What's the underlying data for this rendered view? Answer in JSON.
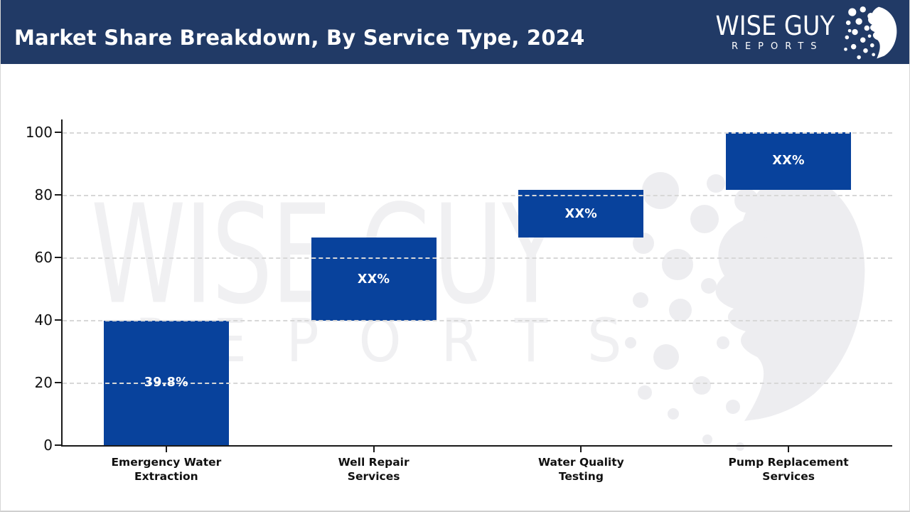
{
  "header": {
    "title": "Market Share Breakdown, By Service Type, 2024",
    "bg_color": "#213a66",
    "logo_name": "WISE GUY",
    "logo_sub": "REPORTS"
  },
  "watermark": {
    "line1": "WISE GUY",
    "line2": "REPORTS"
  },
  "chart_data": {
    "type": "bar",
    "subtype": "waterfall",
    "title": "Market Share Breakdown, By Service Type, 2024",
    "categories": [
      [
        "Emergency Water",
        "Extraction"
      ],
      [
        "Well Repair",
        "Services"
      ],
      [
        "Water Quality",
        "Testing"
      ],
      [
        "Pump Replacement",
        "Services"
      ]
    ],
    "bars": [
      {
        "start": 0,
        "end": 39.8,
        "label": "39.8%"
      },
      {
        "start": 39.8,
        "end": 66.2,
        "label": "XX%"
      },
      {
        "start": 66.2,
        "end": 81.6,
        "label": "XX%"
      },
      {
        "start": 81.6,
        "end": 100,
        "label": "XX%"
      }
    ],
    "yticks": [
      0,
      20,
      40,
      60,
      80,
      100
    ],
    "ylim": [
      0,
      104
    ],
    "xlabel": "",
    "ylabel": "",
    "bar_color": "#08429c",
    "grid": {
      "horizontal": true,
      "style": "dashed",
      "color": "#d7d7d7"
    },
    "legend": null
  }
}
